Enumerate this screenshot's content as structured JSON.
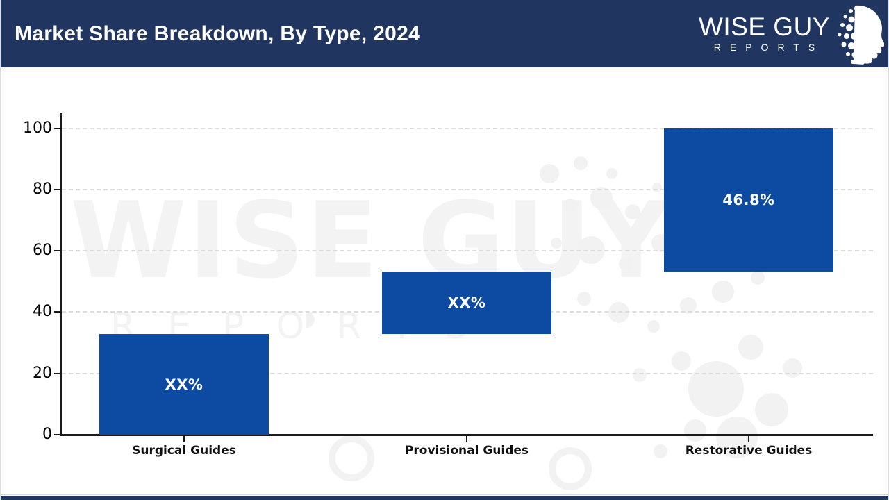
{
  "header": {
    "title": "Market Share Breakdown, By Type, 2024",
    "bg_color": "#203661",
    "logo": {
      "line1": "WISE GUY",
      "line2": "REPORTS"
    }
  },
  "watermark": {
    "line1": "WISE GUY",
    "line2": "REPORTS"
  },
  "chart_data": {
    "type": "bar",
    "subtype": "stacked waterfall segments that sum to 100%",
    "title": "Market Share Breakdown, By Type, 2024",
    "categories": [
      "Surgical Guides",
      "Provisional Guides",
      "Restorative Guides"
    ],
    "series": [
      {
        "name": "Surgical Guides",
        "start": 0,
        "end": 32.8,
        "label": "XX%"
      },
      {
        "name": "Provisional Guides",
        "start": 32.8,
        "end": 53.2,
        "label": "XX%"
      },
      {
        "name": "Restorative Guides",
        "start": 53.2,
        "end": 100,
        "label": "46.8%"
      }
    ],
    "xlabel": "",
    "ylabel": "",
    "ylim": [
      0,
      100
    ],
    "yticks": [
      0,
      20,
      40,
      60,
      80,
      100
    ],
    "grid": "horizontal dashed",
    "legend": "none",
    "bar_color": "#0D4BA2"
  }
}
